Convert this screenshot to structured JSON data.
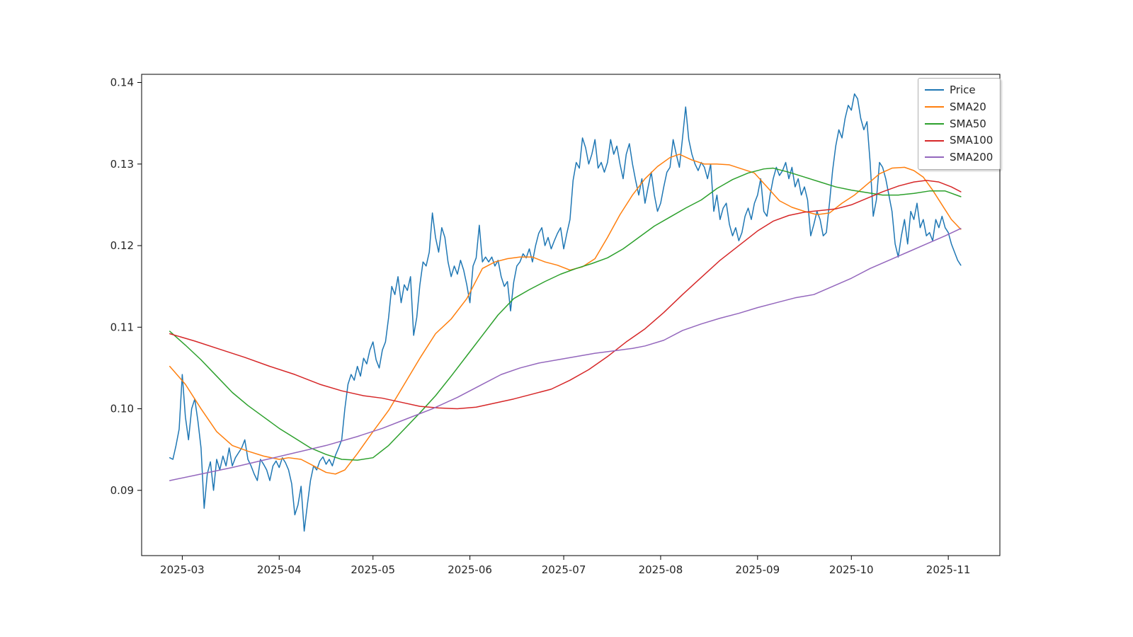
{
  "figure": {
    "background_color": "#ffffff",
    "axes_frame_color": "#000000"
  },
  "legend": {
    "position": "upper-right",
    "items": [
      {
        "label": "Price",
        "color": "#1f77b4"
      },
      {
        "label": "SMA20",
        "color": "#ff7f0e"
      },
      {
        "label": "SMA50",
        "color": "#2ca02c"
      },
      {
        "label": "SMA100",
        "color": "#d62728"
      },
      {
        "label": "SMA200",
        "color": "#9467bd"
      }
    ]
  },
  "chart_data": {
    "type": "line",
    "title": "",
    "xlabel": "",
    "ylabel": "",
    "grid": false,
    "legend_position": "upper right",
    "x_unit": "days since 2025-02-25",
    "xlim": [
      -9,
      265.5
    ],
    "ylim": [
      0.082,
      0.141
    ],
    "yticks": {
      "values": [
        0.09,
        0.1,
        0.11,
        0.12,
        0.13,
        0.14
      ],
      "labels": [
        "0.09",
        "0.10",
        "0.11",
        "0.12",
        "0.13",
        "0.14"
      ]
    },
    "xticks": {
      "values": [
        4,
        35,
        65,
        96,
        126,
        157,
        188,
        218,
        249
      ],
      "labels": [
        "2025-03",
        "2025-04",
        "2025-05",
        "2025-06",
        "2025-07",
        "2025-08",
        "2025-09",
        "2025-10",
        "2025-11"
      ]
    },
    "series": [
      {
        "name": "Price",
        "color": "#1f77b4",
        "line_width": 1.5,
        "values": [
          0.094,
          0.0938,
          0.0955,
          0.0975,
          0.1042,
          0.099,
          0.0962,
          0.1,
          0.1012,
          0.0985,
          0.0952,
          0.0878,
          0.092,
          0.0935,
          0.09,
          0.0938,
          0.0925,
          0.0942,
          0.093,
          0.0952,
          0.093,
          0.094,
          0.0946,
          0.0952,
          0.0962,
          0.0938,
          0.093,
          0.092,
          0.0912,
          0.0938,
          0.0932,
          0.0925,
          0.0912,
          0.093,
          0.0936,
          0.0928,
          0.094,
          0.0934,
          0.0925,
          0.0908,
          0.087,
          0.0882,
          0.0905,
          0.085,
          0.0882,
          0.0912,
          0.093,
          0.0925,
          0.0936,
          0.0941,
          0.0932,
          0.0938,
          0.093,
          0.0943,
          0.0952,
          0.0962,
          0.1,
          0.103,
          0.1042,
          0.1035,
          0.1052,
          0.104,
          0.1062,
          0.1055,
          0.1072,
          0.1082,
          0.106,
          0.105,
          0.1072,
          0.1082,
          0.1112,
          0.115,
          0.114,
          0.1162,
          0.113,
          0.1152,
          0.1145,
          0.1162,
          0.109,
          0.1112,
          0.1152,
          0.118,
          0.1175,
          0.1192,
          0.124,
          0.121,
          0.1192,
          0.1222,
          0.121,
          0.118,
          0.1162,
          0.1175,
          0.1165,
          0.1182,
          0.117,
          0.1152,
          0.113,
          0.1175,
          0.1185,
          0.1225,
          0.118,
          0.1186,
          0.118,
          0.1186,
          0.1175,
          0.1182,
          0.1162,
          0.115,
          0.1156,
          0.112,
          0.1155,
          0.1175,
          0.118,
          0.119,
          0.1185,
          0.1196,
          0.118,
          0.12,
          0.1215,
          0.1222,
          0.12,
          0.121,
          0.1196,
          0.1206,
          0.1215,
          0.1222,
          0.1196,
          0.1215,
          0.1232,
          0.128,
          0.1302,
          0.1295,
          0.1332,
          0.132,
          0.13,
          0.1312,
          0.133,
          0.1295,
          0.1302,
          0.129,
          0.1302,
          0.133,
          0.1312,
          0.1322,
          0.13,
          0.1282,
          0.1312,
          0.1325,
          0.13,
          0.128,
          0.1262,
          0.1282,
          0.1252,
          0.1272,
          0.129,
          0.1262,
          0.1242,
          0.1252,
          0.1272,
          0.129,
          0.1296,
          0.133,
          0.1312,
          0.1296,
          0.1332,
          0.137,
          0.133,
          0.1312,
          0.13,
          0.1292,
          0.1302,
          0.1296,
          0.1282,
          0.13,
          0.1242,
          0.1262,
          0.1232,
          0.1246,
          0.1252,
          0.1226,
          0.1212,
          0.1222,
          0.1206,
          0.1216,
          0.1236,
          0.1246,
          0.1232,
          0.1252,
          0.1262,
          0.1282,
          0.1242,
          0.1236,
          0.1262,
          0.1282,
          0.1296,
          0.1286,
          0.1292,
          0.1302,
          0.1282,
          0.1296,
          0.1272,
          0.1282,
          0.1262,
          0.1272,
          0.1256,
          0.1212,
          0.1226,
          0.1242,
          0.1232,
          0.1212,
          0.1216,
          0.1252,
          0.1292,
          0.1322,
          0.1342,
          0.1332,
          0.1356,
          0.1372,
          0.1366,
          0.1386,
          0.138,
          0.1356,
          0.1342,
          0.1352,
          0.1302,
          0.1236,
          0.1256,
          0.1302,
          0.1296,
          0.1282,
          0.1262,
          0.1242,
          0.1202,
          0.1186,
          0.1212,
          0.1232,
          0.1202,
          0.1242,
          0.1232,
          0.1252,
          0.1222,
          0.1232,
          0.1212,
          0.1216,
          0.1206,
          0.1232,
          0.1222,
          0.1236,
          0.1222,
          0.1216,
          0.1202,
          0.1192,
          0.1182,
          0.1176
        ]
      },
      {
        "name": "SMA20",
        "color": "#ff7f0e",
        "line_width": 1.5,
        "points": [
          [
            0,
            0.1052
          ],
          [
            5,
            0.103
          ],
          [
            10,
            0.1
          ],
          [
            15,
            0.0972
          ],
          [
            20,
            0.0955
          ],
          [
            25,
            0.0948
          ],
          [
            30,
            0.0942
          ],
          [
            35,
            0.0938
          ],
          [
            38,
            0.094
          ],
          [
            42,
            0.0938
          ],
          [
            46,
            0.093
          ],
          [
            50,
            0.0922
          ],
          [
            53,
            0.092
          ],
          [
            56,
            0.0925
          ],
          [
            60,
            0.0945
          ],
          [
            65,
            0.0972
          ],
          [
            70,
            0.0998
          ],
          [
            75,
            0.103
          ],
          [
            80,
            0.1062
          ],
          [
            85,
            0.1092
          ],
          [
            90,
            0.111
          ],
          [
            95,
            0.1135
          ],
          [
            100,
            0.1172
          ],
          [
            104,
            0.118
          ],
          [
            108,
            0.1184
          ],
          [
            112,
            0.1186
          ],
          [
            116,
            0.1186
          ],
          [
            120,
            0.118
          ],
          [
            124,
            0.1176
          ],
          [
            128,
            0.117
          ],
          [
            132,
            0.1174
          ],
          [
            136,
            0.1184
          ],
          [
            140,
            0.121
          ],
          [
            144,
            0.1238
          ],
          [
            148,
            0.1262
          ],
          [
            152,
            0.1282
          ],
          [
            156,
            0.1297
          ],
          [
            160,
            0.1308
          ],
          [
            163,
            0.1312
          ],
          [
            167,
            0.1305
          ],
          [
            171,
            0.13
          ],
          [
            175,
            0.13
          ],
          [
            179,
            0.1299
          ],
          [
            183,
            0.1294
          ],
          [
            187,
            0.1289
          ],
          [
            191,
            0.1272
          ],
          [
            195,
            0.1255
          ],
          [
            199,
            0.1247
          ],
          [
            203,
            0.1242
          ],
          [
            207,
            0.1238
          ],
          [
            211,
            0.124
          ],
          [
            215,
            0.1252
          ],
          [
            219,
            0.1262
          ],
          [
            223,
            0.1275
          ],
          [
            227,
            0.1288
          ],
          [
            231,
            0.1295
          ],
          [
            235,
            0.1296
          ],
          [
            238,
            0.1292
          ],
          [
            241,
            0.1284
          ],
          [
            244,
            0.1268
          ],
          [
            247,
            0.125
          ],
          [
            250,
            0.1232
          ],
          [
            253,
            0.122
          ]
        ]
      },
      {
        "name": "SMA50",
        "color": "#2ca02c",
        "line_width": 1.5,
        "points": [
          [
            0,
            0.1095
          ],
          [
            5,
            0.1078
          ],
          [
            10,
            0.106
          ],
          [
            15,
            0.104
          ],
          [
            20,
            0.102
          ],
          [
            25,
            0.1004
          ],
          [
            30,
            0.099
          ],
          [
            35,
            0.0976
          ],
          [
            40,
            0.0964
          ],
          [
            45,
            0.0952
          ],
          [
            50,
            0.0944
          ],
          [
            55,
            0.0938
          ],
          [
            60,
            0.0937
          ],
          [
            65,
            0.094
          ],
          [
            70,
            0.0955
          ],
          [
            75,
            0.0975
          ],
          [
            80,
            0.0995
          ],
          [
            85,
            0.1016
          ],
          [
            90,
            0.104
          ],
          [
            95,
            0.1065
          ],
          [
            100,
            0.109
          ],
          [
            105,
            0.1115
          ],
          [
            110,
            0.1135
          ],
          [
            115,
            0.1146
          ],
          [
            120,
            0.1156
          ],
          [
            125,
            0.1165
          ],
          [
            130,
            0.1172
          ],
          [
            135,
            0.1178
          ],
          [
            140,
            0.1185
          ],
          [
            145,
            0.1196
          ],
          [
            150,
            0.121
          ],
          [
            155,
            0.1224
          ],
          [
            160,
            0.1235
          ],
          [
            165,
            0.1246
          ],
          [
            170,
            0.1256
          ],
          [
            175,
            0.127
          ],
          [
            180,
            0.1281
          ],
          [
            185,
            0.1289
          ],
          [
            190,
            0.1294
          ],
          [
            193,
            0.1295
          ],
          [
            198,
            0.129
          ],
          [
            203,
            0.1284
          ],
          [
            208,
            0.1278
          ],
          [
            213,
            0.1272
          ],
          [
            218,
            0.1268
          ],
          [
            223,
            0.1265
          ],
          [
            228,
            0.1262
          ],
          [
            233,
            0.1262
          ],
          [
            238,
            0.1264
          ],
          [
            243,
            0.1267
          ],
          [
            248,
            0.1267
          ],
          [
            253,
            0.126
          ]
        ]
      },
      {
        "name": "SMA100",
        "color": "#d62728",
        "line_width": 1.5,
        "points": [
          [
            0,
            0.1092
          ],
          [
            8,
            0.1083
          ],
          [
            16,
            0.1073
          ],
          [
            24,
            0.1063
          ],
          [
            32,
            0.1052
          ],
          [
            40,
            0.1042
          ],
          [
            48,
            0.103
          ],
          [
            55,
            0.1022
          ],
          [
            62,
            0.1016
          ],
          [
            68,
            0.1013
          ],
          [
            74,
            0.1008
          ],
          [
            80,
            0.1003
          ],
          [
            86,
            0.1001
          ],
          [
            92,
            0.1
          ],
          [
            98,
            0.1002
          ],
          [
            104,
            0.1007
          ],
          [
            110,
            0.1012
          ],
          [
            116,
            0.1018
          ],
          [
            122,
            0.1024
          ],
          [
            128,
            0.1035
          ],
          [
            134,
            0.1048
          ],
          [
            140,
            0.1064
          ],
          [
            146,
            0.1082
          ],
          [
            152,
            0.1098
          ],
          [
            158,
            0.1118
          ],
          [
            164,
            0.114
          ],
          [
            170,
            0.1161
          ],
          [
            176,
            0.1182
          ],
          [
            182,
            0.12
          ],
          [
            188,
            0.1218
          ],
          [
            193,
            0.123
          ],
          [
            198,
            0.1237
          ],
          [
            203,
            0.1241
          ],
          [
            208,
            0.1243
          ],
          [
            213,
            0.1245
          ],
          [
            218,
            0.125
          ],
          [
            223,
            0.1258
          ],
          [
            228,
            0.1266
          ],
          [
            233,
            0.1273
          ],
          [
            238,
            0.1278
          ],
          [
            242,
            0.128
          ],
          [
            246,
            0.1278
          ],
          [
            250,
            0.1272
          ],
          [
            253,
            0.1266
          ]
        ]
      },
      {
        "name": "SMA200",
        "color": "#9467bd",
        "line_width": 1.5,
        "points": [
          [
            0,
            0.0912
          ],
          [
            10,
            0.092
          ],
          [
            20,
            0.0928
          ],
          [
            30,
            0.0937
          ],
          [
            40,
            0.0946
          ],
          [
            50,
            0.0955
          ],
          [
            60,
            0.0966
          ],
          [
            68,
            0.0976
          ],
          [
            76,
            0.0988
          ],
          [
            84,
            0.1
          ],
          [
            92,
            0.1014
          ],
          [
            100,
            0.103
          ],
          [
            106,
            0.1042
          ],
          [
            112,
            0.105
          ],
          [
            118,
            0.1056
          ],
          [
            124,
            0.106
          ],
          [
            130,
            0.1064
          ],
          [
            136,
            0.1068
          ],
          [
            142,
            0.1071
          ],
          [
            148,
            0.1074
          ],
          [
            152,
            0.1077
          ],
          [
            158,
            0.1084
          ],
          [
            164,
            0.1096
          ],
          [
            170,
            0.1104
          ],
          [
            176,
            0.1111
          ],
          [
            182,
            0.1117
          ],
          [
            188,
            0.1124
          ],
          [
            194,
            0.113
          ],
          [
            200,
            0.1136
          ],
          [
            206,
            0.114
          ],
          [
            212,
            0.115
          ],
          [
            218,
            0.116
          ],
          [
            224,
            0.1172
          ],
          [
            230,
            0.1182
          ],
          [
            236,
            0.1192
          ],
          [
            242,
            0.1202
          ],
          [
            248,
            0.1212
          ],
          [
            253,
            0.1221
          ]
        ]
      }
    ]
  }
}
